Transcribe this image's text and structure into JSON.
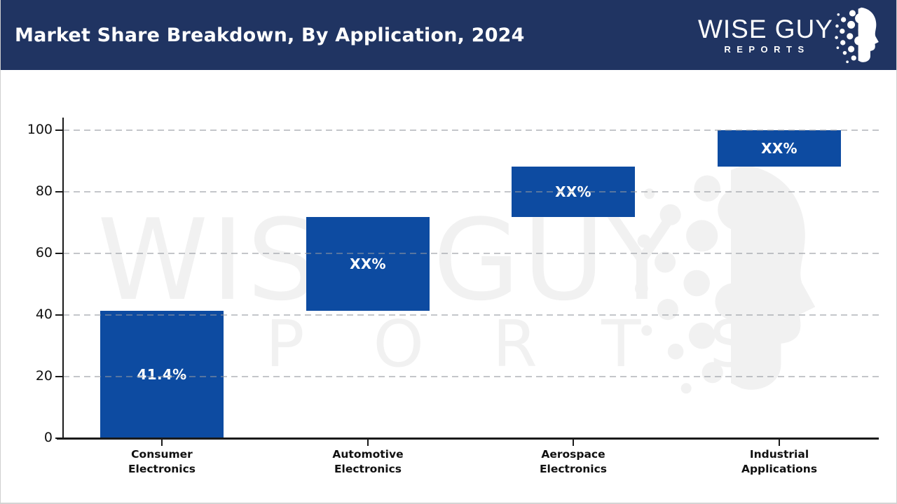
{
  "header": {
    "logo": {
      "line1": "WISE GUY",
      "line2": "REPORTS",
      "icon": "wiseguy-head-icon"
    }
  },
  "watermark": {
    "line1": "WISE GUY",
    "line2": "PORTS",
    "icon": "wiseguy-head-icon"
  },
  "colors": {
    "header_bg": "#203462",
    "bar": "#0d4ba1",
    "axis": "#1a1a1a",
    "grid": "#c9c9c9",
    "bar_label": "#ffffff",
    "watermark": "#f1f1f1"
  },
  "chart_data": {
    "type": "bar",
    "subtype": "waterfall",
    "title": "Market Share Breakdown, By Application, 2024",
    "categories": [
      "Consumer Electronics",
      "Automotive Electronics",
      "Aerospace Electronics",
      "Industrial Applications"
    ],
    "category_lines": [
      [
        "Consumer",
        "Electronics"
      ],
      [
        "Automotive",
        "Electronics"
      ],
      [
        "Aerospace",
        "Electronics"
      ],
      [
        "Industrial",
        "Applications"
      ]
    ],
    "segments": [
      {
        "category": "Consumer Electronics",
        "start": 0,
        "end": 41.4,
        "label": "41.4%"
      },
      {
        "category": "Automotive Electronics",
        "start": 41.4,
        "end": 71.9,
        "label": "XX%"
      },
      {
        "category": "Aerospace Electronics",
        "start": 71.9,
        "end": 88.2,
        "label": "XX%"
      },
      {
        "category": "Industrial Applications",
        "start": 88.2,
        "end": 100,
        "label": "XX%"
      }
    ],
    "yticks": [
      0,
      20,
      40,
      60,
      80,
      100
    ],
    "ylim": [
      0,
      105
    ],
    "xlabel": "",
    "ylabel": "",
    "grid": "horizontal-dashed",
    "legend": "none",
    "bar_color": "#0d4ba1",
    "bar_label_color": "#ffffff"
  }
}
